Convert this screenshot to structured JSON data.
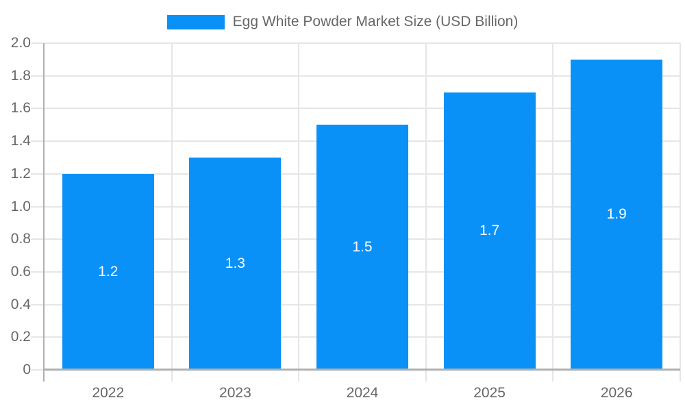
{
  "chart_data": {
    "type": "bar",
    "title": "Egg White Powder Market Size (USD Billion)",
    "categories": [
      "2022",
      "2023",
      "2024",
      "2025",
      "2026"
    ],
    "values": [
      1.2,
      1.3,
      1.5,
      1.7,
      1.9
    ],
    "value_labels": [
      "1.2",
      "1.3",
      "1.5",
      "1.7",
      "1.9"
    ],
    "xlabel": "",
    "ylabel": "",
    "ylim": [
      0,
      2.0
    ],
    "ytick_step": 0.2,
    "ytick_labels": [
      "0",
      "0.2",
      "0.4",
      "0.6",
      "0.8",
      "1.0",
      "1.2",
      "1.4",
      "1.6",
      "1.8",
      "2.0"
    ],
    "grid": true,
    "legend_position": "top",
    "colors": {
      "bar": "#0991f8",
      "gridline": "#e6e6e6",
      "tick": "#e6e6e6",
      "axis_line": "#b0b0b0",
      "axis_text": "#666666",
      "legend_text": "#666666",
      "value_text": "#ffffff",
      "background": "#ffffff"
    }
  }
}
